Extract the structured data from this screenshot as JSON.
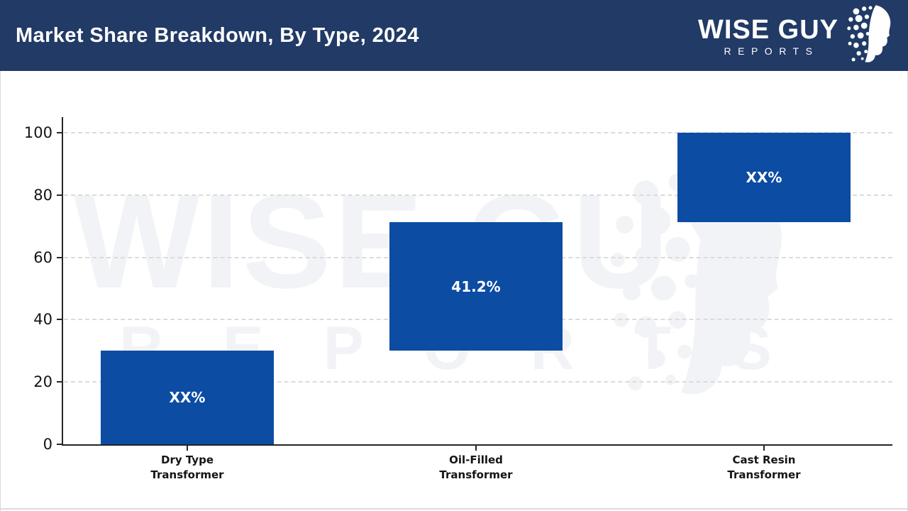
{
  "header": {
    "title": "Market Share Breakdown, By Type, 2024",
    "logo": {
      "name": "WISE GUY",
      "tagline": "REPORTS"
    }
  },
  "watermark": {
    "name": "WISE GUY",
    "tagline": "REPORTS"
  },
  "chart_data": {
    "type": "bar",
    "subtype": "floating-segment-waterfall",
    "title": "Market Share Breakdown, By Type, 2024",
    "categories": [
      "Dry Type Transformer",
      "Oil-Filled Transformer",
      "Cast Resin Transformer"
    ],
    "bars": [
      {
        "category_lines": [
          "Dry Type",
          "Transformer"
        ],
        "start": 0,
        "end": 30,
        "span": 30,
        "label": "XX%"
      },
      {
        "category_lines": [
          "Oil-Filled",
          "Transformer"
        ],
        "start": 30,
        "end": 71.2,
        "span": 41.2,
        "label": "41.2%"
      },
      {
        "category_lines": [
          "Cast Resin",
          "Transformer"
        ],
        "start": 71.2,
        "end": 100,
        "span": 28.8,
        "label": "XX%"
      }
    ],
    "ylim": [
      0,
      100
    ],
    "yticks": [
      0,
      20,
      40,
      60,
      80,
      100
    ],
    "grid": {
      "horizontal": true,
      "style": "dashed"
    },
    "legend": "none",
    "colors": {
      "bar": "#0C4CA3",
      "bar_label": "#FFFFFF",
      "axis": "#262626",
      "grid": "#DBDBDB",
      "tick_label": "#141414"
    }
  },
  "theme": {
    "header_bg": "#213A66",
    "header_text": "#FFFFFF",
    "canvas_bg": "#FFFFFF",
    "watermark_color": "#F2F3F6",
    "frame_line": "#D9D9D9"
  }
}
